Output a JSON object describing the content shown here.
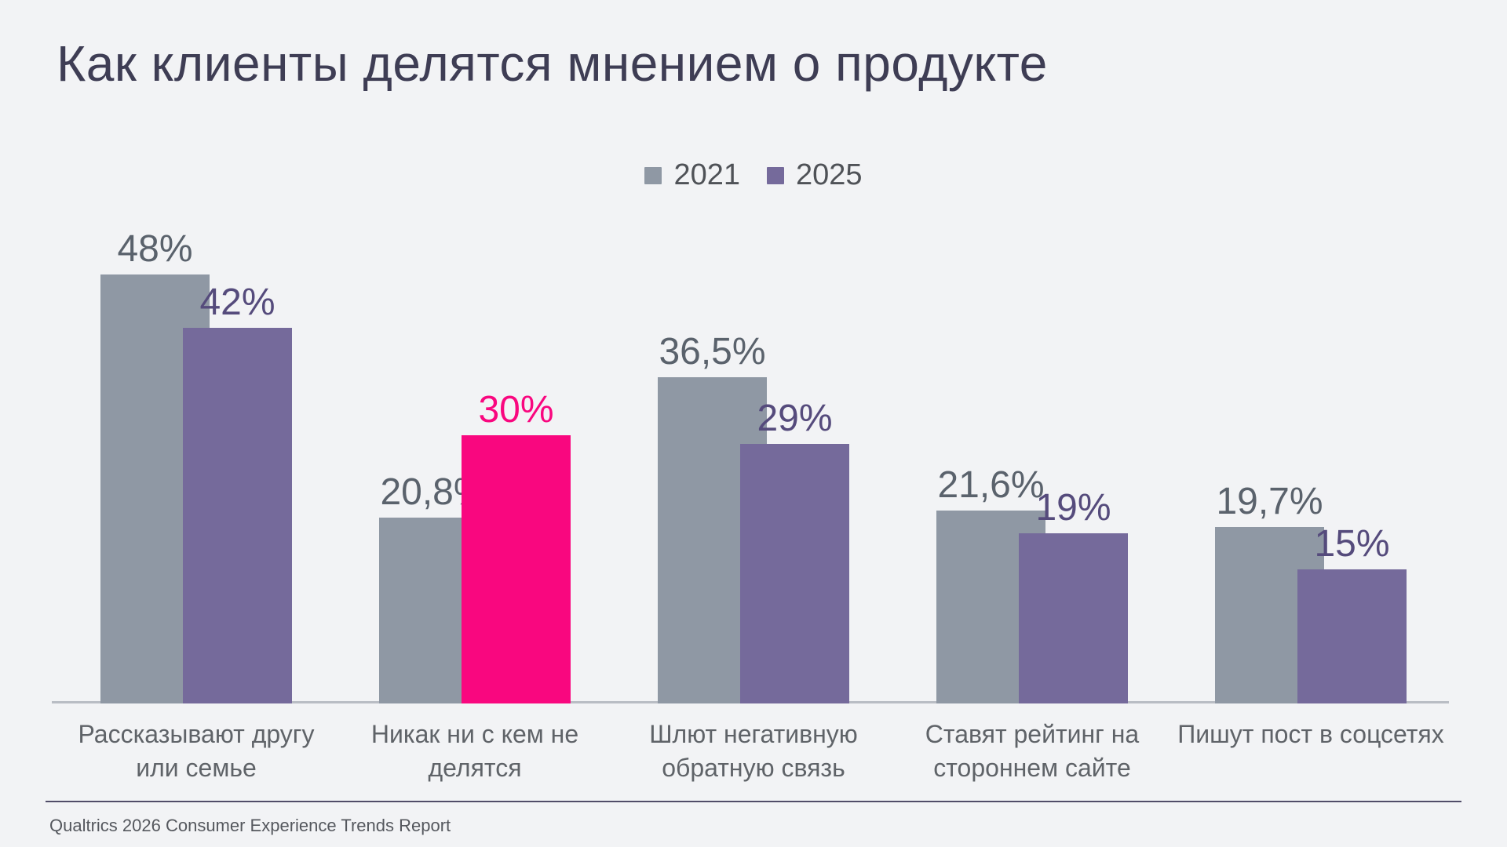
{
  "page": {
    "background": "#F2F3F5",
    "accent_pink": "#F9077F"
  },
  "chart_data": {
    "type": "bar",
    "title": "Как клиенты делятся мнением о продукте",
    "categories": [
      "Рассказывают другу\nили семье",
      "Никак ни с кем не\nделятся",
      "Шлют негативную\nобратную связь",
      "Ставят рейтинг на\nстороннем сайте",
      "Пишут пост в соцсетях"
    ],
    "series": [
      {
        "name": "2021",
        "values": [
          48,
          20.8,
          36.5,
          21.6,
          19.7
        ],
        "display_labels": [
          "48%",
          "20,8%",
          "36,5%",
          "21,6%",
          "19,7%"
        ],
        "color": "#8F98A4",
        "label_color": "#5A626C"
      },
      {
        "name": "2025",
        "values": [
          42,
          30,
          29,
          19,
          15
        ],
        "display_labels": [
          "42%",
          "30%",
          "29%",
          "19%",
          "15%"
        ],
        "color": "#756A9B",
        "label_color": "#554B7C",
        "highlight_index": 1,
        "highlight_color": "#F9077F",
        "highlight_label_color": "#F9077F"
      }
    ],
    "ylim": [
      0,
      50
    ],
    "grid": false,
    "legend_position": "top-center",
    "value_labels": "above-bars",
    "axis": "x-baseline-only"
  },
  "footer": {
    "source": "Qualtrics 2026 Consumer Experience Trends Report"
  }
}
